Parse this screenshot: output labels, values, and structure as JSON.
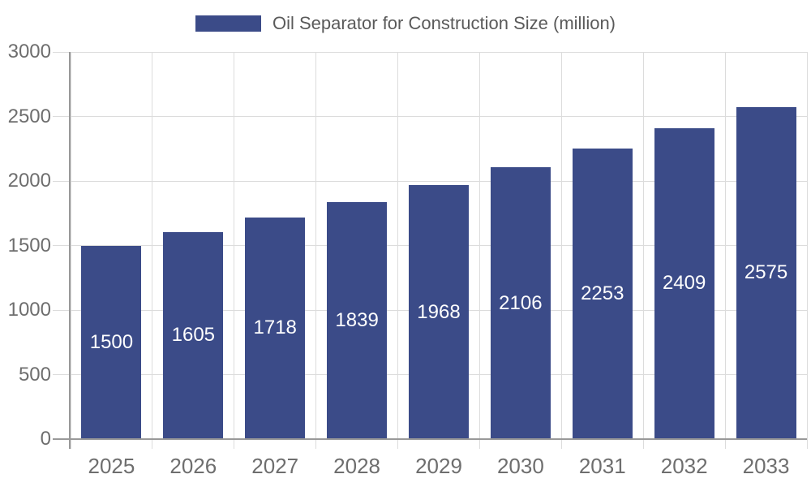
{
  "chart_data": {
    "type": "bar",
    "title": "Oil Separator for Construction Size (million)",
    "legend": [
      "Oil Separator for Construction Size (million)"
    ],
    "legend_position": "top-center",
    "categories": [
      "2025",
      "2026",
      "2027",
      "2028",
      "2029",
      "2030",
      "2031",
      "2032",
      "2033"
    ],
    "series": [
      {
        "name": "Oil Separator for Construction Size (million)",
        "values": [
          1500,
          1605,
          1718,
          1839,
          1968,
          2106,
          2253,
          2409,
          2575
        ]
      }
    ],
    "value_labels": "inside-center-white",
    "xlabel": "",
    "ylabel": "",
    "ylim": [
      0,
      3000
    ],
    "ytick_step": 500,
    "yticks": [
      0,
      500,
      1000,
      1500,
      2000,
      2500,
      3000
    ],
    "grid": true,
    "colors": {
      "bar": "#3B4B88",
      "axis_line": "#999999",
      "gridline": "#DCDCDC",
      "axis_text": "#6E6E6E",
      "legend_text": "#5A5A5A",
      "value_label_text": "#FFFFFF",
      "background": "#FFFFFF"
    }
  }
}
